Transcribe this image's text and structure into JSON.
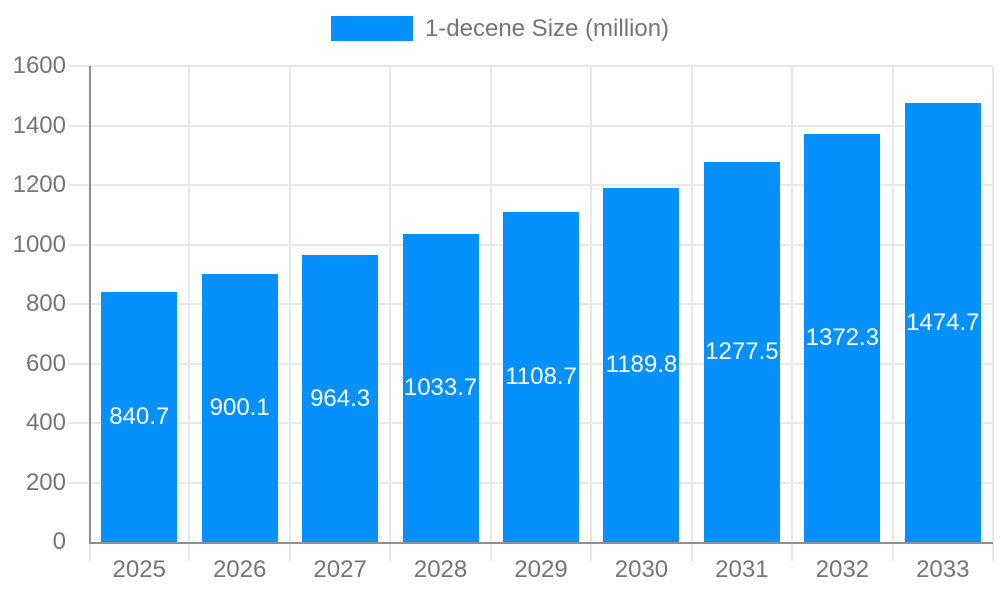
{
  "legend": {
    "label": "1-decene Size (million)"
  },
  "colors": {
    "bar": "#0590FB",
    "grid": "#e8e8e8",
    "axis_line": "#8f8f8f",
    "axis_label": "#757575",
    "value_label": "#ffffff",
    "background": "#ffffff"
  },
  "chart_data": {
    "type": "bar",
    "title": "1-decene Size (million)",
    "categories": [
      "2025",
      "2026",
      "2027",
      "2028",
      "2029",
      "2030",
      "2031",
      "2032",
      "2033"
    ],
    "values": [
      840.7,
      900.1,
      964.3,
      1033.7,
      1108.7,
      1189.8,
      1277.5,
      1372.3,
      1474.7
    ],
    "series": [
      {
        "name": "1-decene Size (million)",
        "values": [
          840.7,
          900.1,
          964.3,
          1033.7,
          1108.7,
          1189.8,
          1277.5,
          1372.3,
          1474.7
        ]
      }
    ],
    "xlabel": "",
    "ylabel": "",
    "ylim": [
      0,
      1600
    ],
    "ytick_step": 200,
    "yticks": [
      0,
      200,
      400,
      600,
      800,
      1000,
      1200,
      1400,
      1600
    ],
    "grid": true,
    "legend_position": "top",
    "value_label_decimals": 1
  }
}
